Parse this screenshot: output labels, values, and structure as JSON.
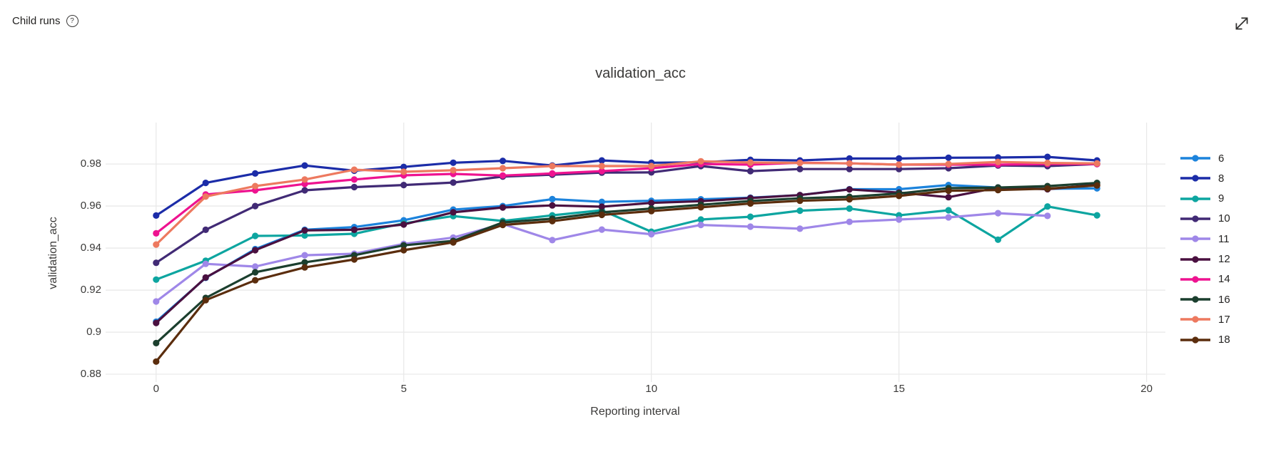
{
  "header": {
    "title": "Child runs",
    "help_glyph": "?",
    "help_icon": "question-mark-circle-icon",
    "expand_icon": "expand-diagonal-arrow-icon"
  },
  "chart_data": {
    "type": "line",
    "title": "validation_acc",
    "xlabel": "Reporting interval",
    "ylabel": "validation_acc",
    "legend_position": "right",
    "grid": true,
    "grid_color": "#e9e9e9",
    "axis_text_color": "#3b3a39",
    "xlim": [
      -1.02,
      20.38
    ],
    "ylim": [
      0.8756,
      0.9997
    ],
    "x_ticks": [
      "0",
      "5",
      "10",
      "15",
      "20"
    ],
    "y_ticks": [
      "0.88",
      "0.9",
      "0.92",
      "0.94",
      "0.96",
      "0.98"
    ],
    "x": [
      0,
      1,
      2,
      3,
      4,
      5,
      6,
      7,
      8,
      9,
      10,
      11,
      12,
      13,
      14,
      15,
      16,
      17,
      18,
      19
    ],
    "series": [
      {
        "name": "6",
        "color": "#1c83dc",
        "values": [
          0.905,
          0.9258,
          0.9395,
          0.9487,
          0.95,
          0.9532,
          0.9583,
          0.96,
          0.9633,
          0.962,
          0.9625,
          0.9632,
          0.964,
          0.9652,
          0.968,
          0.968,
          0.97,
          0.9688,
          0.9682,
          0.9684
        ]
      },
      {
        "name": "8",
        "color": "#1b2ca8",
        "values": [
          0.9555,
          0.971,
          0.9755,
          0.9793,
          0.9768,
          0.9786,
          0.9806,
          0.9815,
          0.9793,
          0.9817,
          0.9806,
          0.9808,
          0.982,
          0.9817,
          0.9826,
          0.9826,
          0.983,
          0.9831,
          0.9834,
          0.9817
        ]
      },
      {
        "name": "9",
        "color": "#0da5a0",
        "values": [
          0.925,
          0.934,
          0.9458,
          0.946,
          0.9468,
          0.9518,
          0.9552,
          0.9529,
          0.9556,
          0.958,
          0.9478,
          0.9536,
          0.9549,
          0.9578,
          0.9588,
          0.9556,
          0.958,
          0.944,
          0.9598,
          0.9556
        ]
      },
      {
        "name": "10",
        "color": "#412a75",
        "values": [
          0.933,
          0.9487,
          0.96,
          0.9675,
          0.969,
          0.97,
          0.9712,
          0.974,
          0.9749,
          0.9759,
          0.976,
          0.979,
          0.9766,
          0.9776,
          0.9776,
          0.9776,
          0.978,
          0.9793,
          0.979,
          0.98
        ]
      },
      {
        "name": "11",
        "color": "#9f87e8",
        "x": [
          0,
          1,
          2,
          3,
          4,
          5,
          6,
          7,
          8,
          9,
          10,
          11,
          12,
          13,
          14,
          15,
          16,
          17,
          18
        ],
        "values": [
          0.9146,
          0.9325,
          0.9312,
          0.9366,
          0.9373,
          0.942,
          0.945,
          0.9515,
          0.9438,
          0.9488,
          0.9466,
          0.951,
          0.9502,
          0.9492,
          0.9525,
          0.9536,
          0.9546,
          0.9566,
          0.9553
        ]
      },
      {
        "name": "12",
        "color": "#4a1040",
        "values": [
          0.9044,
          0.926,
          0.939,
          0.9484,
          0.9487,
          0.9512,
          0.957,
          0.9593,
          0.9603,
          0.9597,
          0.9615,
          0.9623,
          0.9638,
          0.9652,
          0.9679,
          0.9664,
          0.9642,
          0.9688,
          0.968,
          0.9702
        ]
      },
      {
        "name": "14",
        "color": "#ee1390",
        "values": [
          0.947,
          0.9655,
          0.9675,
          0.9705,
          0.9726,
          0.9746,
          0.9753,
          0.9745,
          0.9755,
          0.9766,
          0.978,
          0.98,
          0.9797,
          0.9806,
          0.9803,
          0.9797,
          0.9797,
          0.9797,
          0.98,
          0.98
        ]
      },
      {
        "name": "16",
        "color": "#1b3f2e",
        "values": [
          0.8948,
          0.9163,
          0.9285,
          0.9332,
          0.9366,
          0.9413,
          0.9434,
          0.9522,
          0.954,
          0.957,
          0.9588,
          0.9606,
          0.9624,
          0.9637,
          0.9644,
          0.966,
          0.9685,
          0.9688,
          0.9695,
          0.971
        ]
      },
      {
        "name": "17",
        "color": "#ed795f",
        "values": [
          0.9417,
          0.9645,
          0.9695,
          0.9726,
          0.9773,
          0.9763,
          0.977,
          0.978,
          0.979,
          0.979,
          0.979,
          0.9813,
          0.9807,
          0.9805,
          0.9803,
          0.9797,
          0.98,
          0.981,
          0.9805,
          0.9803
        ]
      },
      {
        "name": "18",
        "color": "#5b2d0d",
        "values": [
          0.886,
          0.9152,
          0.9247,
          0.9308,
          0.9346,
          0.939,
          0.9427,
          0.951,
          0.9528,
          0.9558,
          0.9576,
          0.9594,
          0.9612,
          0.9625,
          0.9632,
          0.9648,
          0.9673,
          0.9676,
          0.9683,
          0.9698
        ]
      }
    ]
  }
}
